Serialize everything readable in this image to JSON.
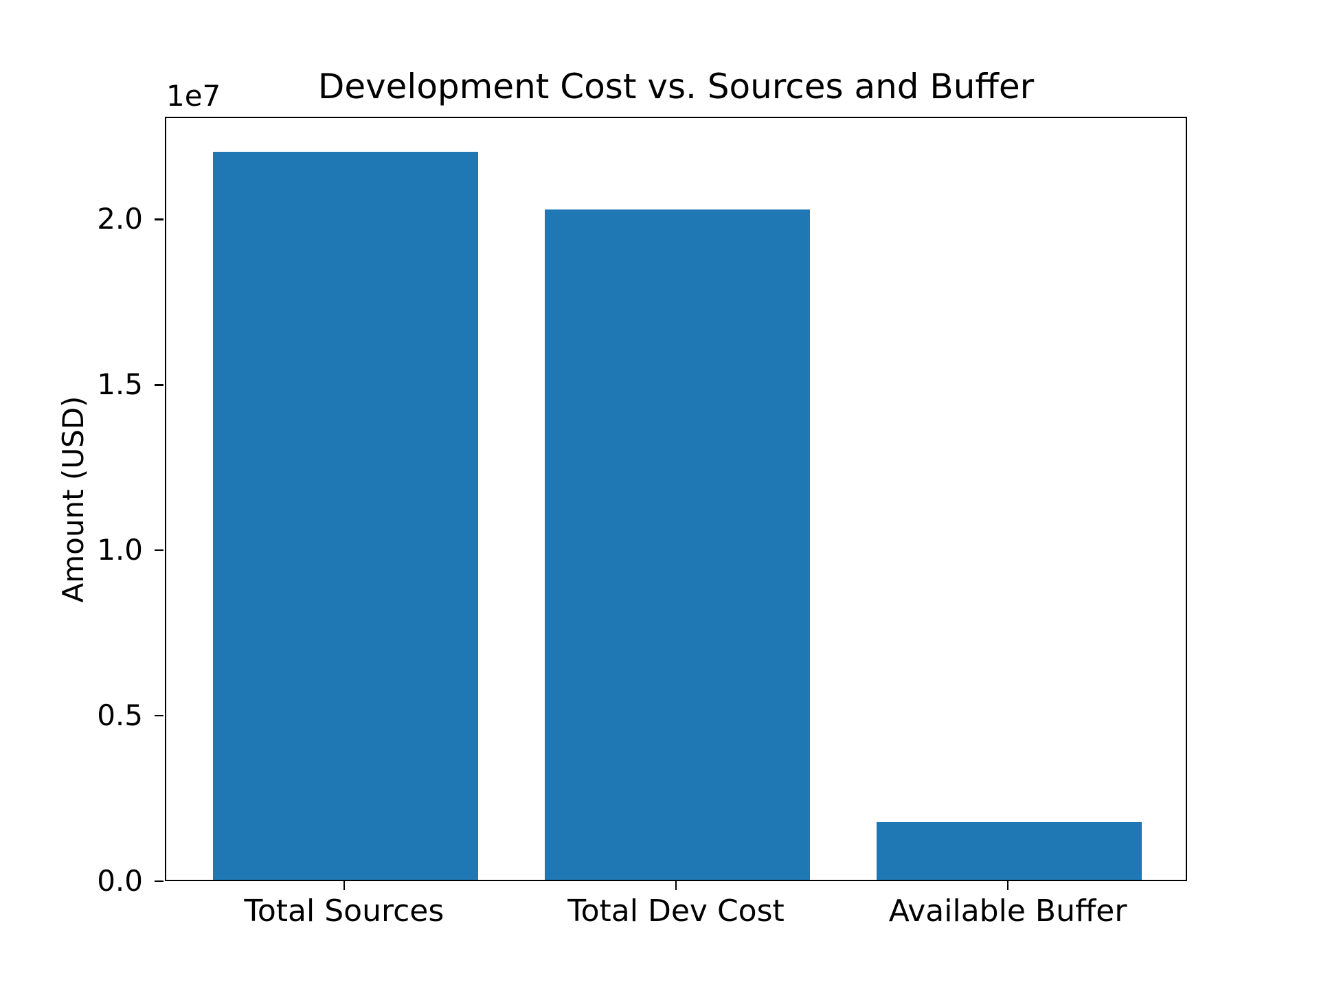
{
  "chart_data": {
    "type": "bar",
    "title": "Development Cost vs. Sources and Buffer",
    "xlabel": "",
    "ylabel": "Amount (USD)",
    "offset_text": "1e7",
    "categories": [
      "Total Sources",
      "Total Dev Cost",
      "Available Buffer"
    ],
    "values": [
      22000000,
      20250000,
      1750000
    ],
    "bar_color": "#1f77b4",
    "axis_color": "#000000",
    "background_color": "#ffffff",
    "grid": false,
    "legend": null,
    "ylim": [
      0,
      23100000
    ],
    "xlim": [
      -0.54,
      2.54
    ],
    "bar_width": 0.8,
    "yticks": [
      0,
      5000000,
      10000000,
      15000000,
      20000000
    ],
    "ytick_labels": [
      "0.0",
      "0.5",
      "1.0",
      "1.5",
      "2.0"
    ]
  }
}
